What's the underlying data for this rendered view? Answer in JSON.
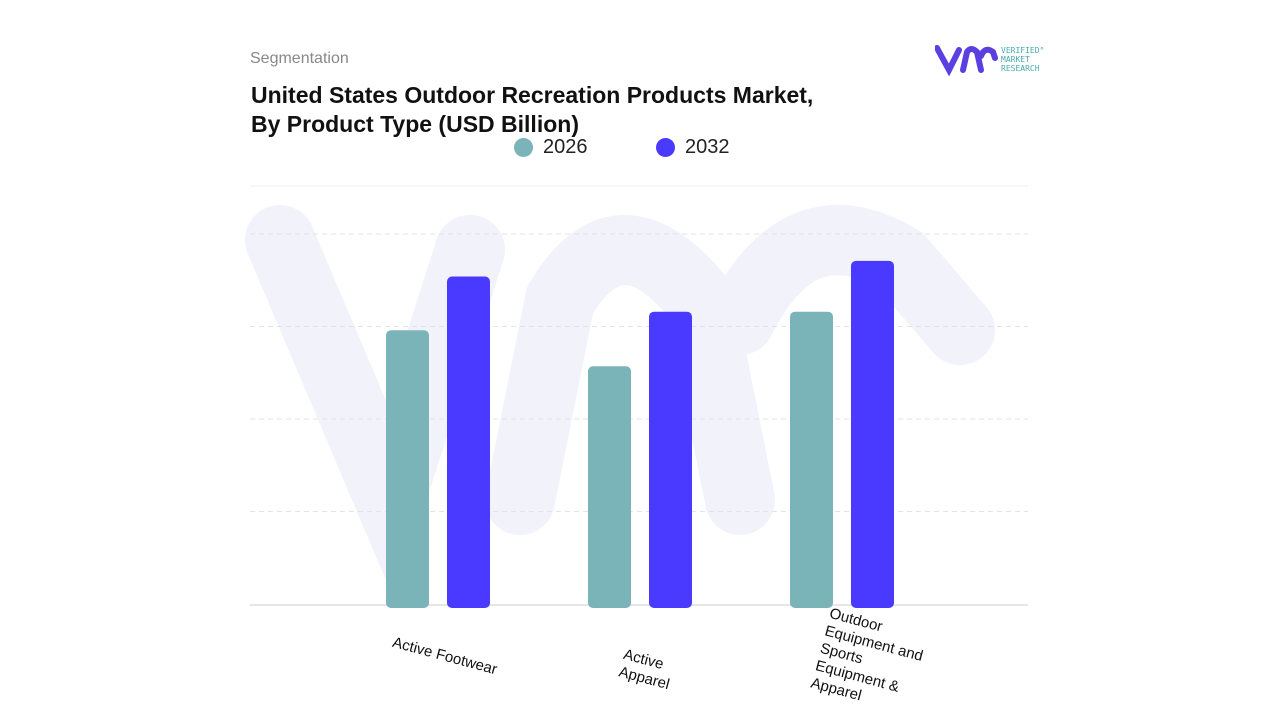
{
  "header": {
    "section": "Segmentation",
    "title_line1": "United States Outdoor Recreation Products Market,",
    "title_line2": "By Product Type (USD Billion)",
    "logo_text": [
      "VERIFIED",
      "MARKET",
      "RESEARCH"
    ]
  },
  "colors": {
    "2026": "#7ab4b8",
    "2032": "#4a3aff",
    "brand": "#5b3fe0",
    "grid": "#e5e5e5"
  },
  "chart_data": {
    "type": "bar",
    "title": "United States Outdoor Recreation Products Market, By Product Type (USD Billion)",
    "categories": [
      "Active Footwear",
      "Active Apparel",
      "Outdoor Equipment and Sports Equipment & Apparel"
    ],
    "category_lines": [
      [
        "Active Footwear"
      ],
      [
        "Active",
        "Apparel"
      ],
      [
        "Outdoor",
        "Equipment and",
        "Sports",
        "Equipment &",
        "Apparel"
      ]
    ],
    "series": [
      {
        "name": "2026",
        "values": [
          2.96,
          2.57,
          3.16
        ]
      },
      {
        "name": "2032",
        "values": [
          3.54,
          3.16,
          3.71
        ]
      }
    ],
    "ylim": [
      0,
      4.5
    ],
    "y_tick_labels_shown": false,
    "grid": true,
    "legend": "top-center"
  }
}
